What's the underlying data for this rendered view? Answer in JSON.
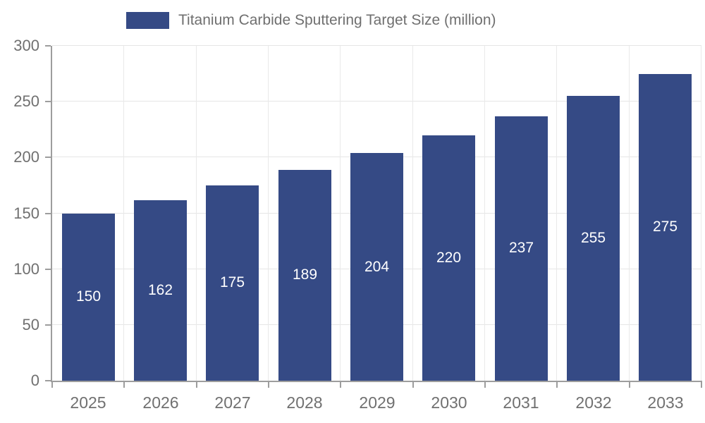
{
  "legend": {
    "label": "Titanium Carbide Sputtering Target Size (million)"
  },
  "chart_data": {
    "type": "bar",
    "title": "Titanium Carbide Sputtering Target Size (million)",
    "categories": [
      "2025",
      "2026",
      "2027",
      "2028",
      "2029",
      "2030",
      "2031",
      "2032",
      "2033"
    ],
    "values": [
      150,
      162,
      175,
      189,
      204,
      220,
      237,
      255,
      275
    ],
    "series": [
      {
        "name": "Titanium Carbide Sputtering Target Size (million)",
        "values": [
          150,
          162,
          175,
          189,
          204,
          220,
          237,
          255,
          275
        ]
      }
    ],
    "xlabel": "",
    "ylabel": "",
    "ylim": [
      0,
      300
    ],
    "yticks": [
      0,
      50,
      100,
      150,
      200,
      250,
      300
    ],
    "grid": true,
    "legend_position": "top",
    "bar_color": "#354a85",
    "value_label_color": "#ffffff"
  }
}
